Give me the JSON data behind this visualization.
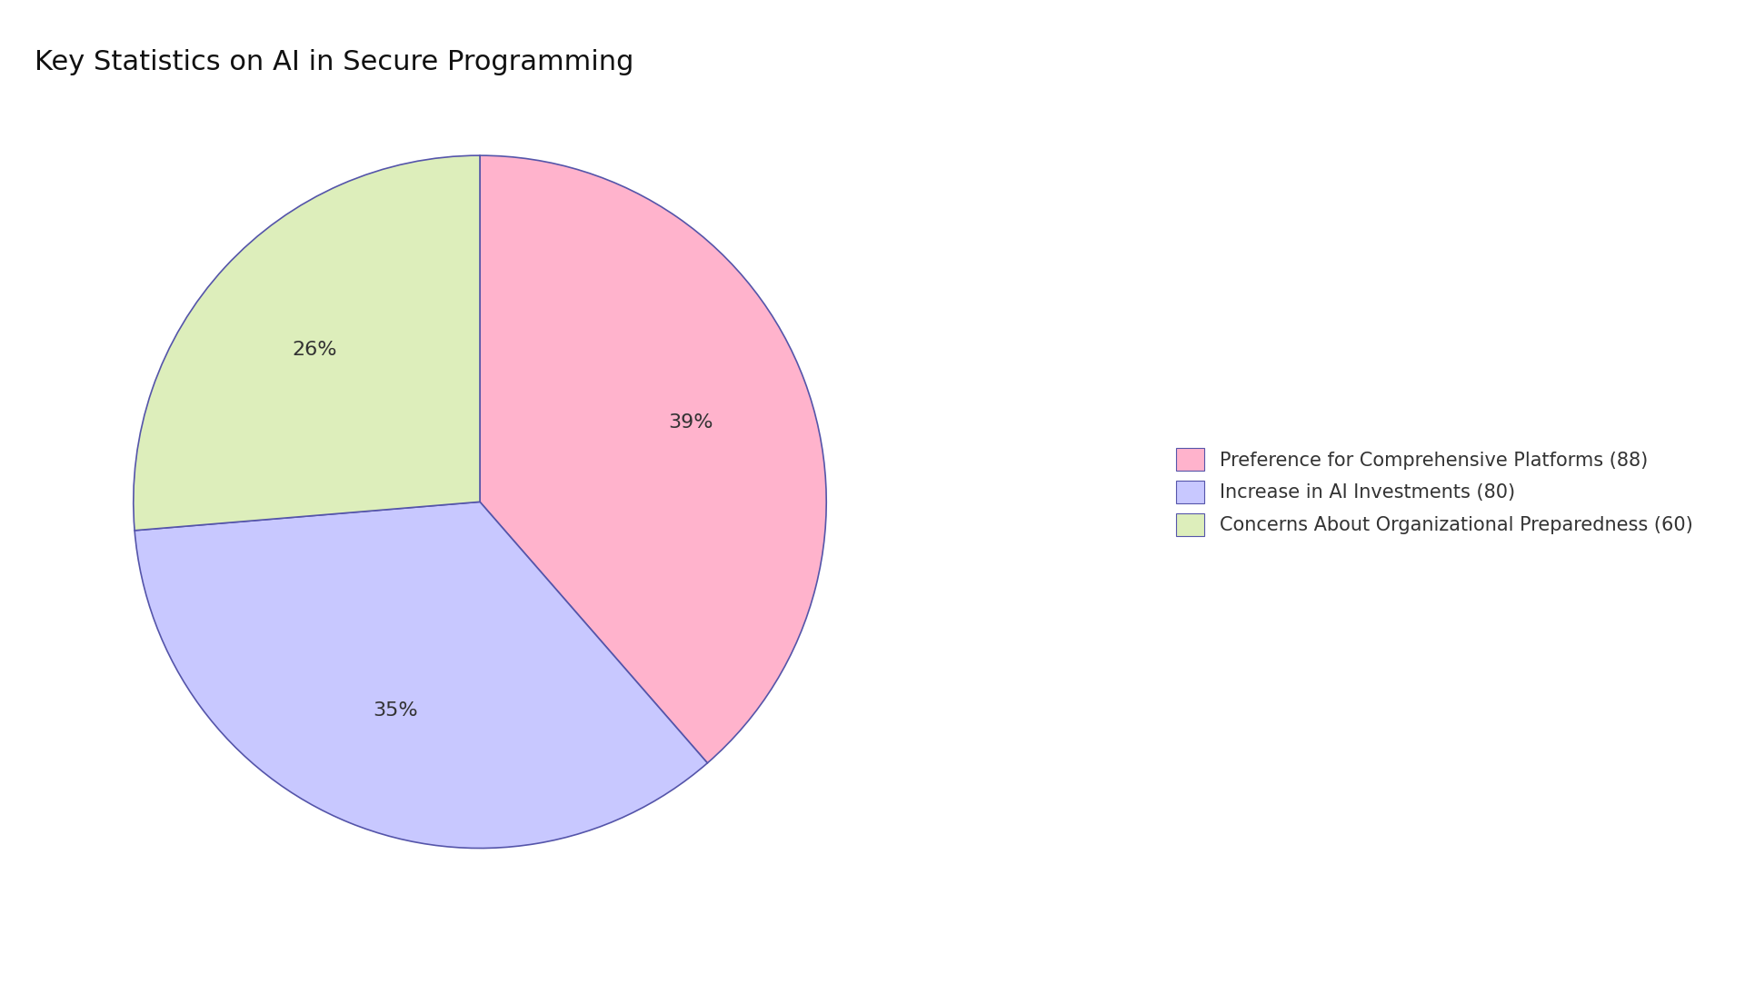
{
  "title": "Key Statistics on AI in Secure Programming",
  "title_fontsize": 22,
  "title_color": "#111111",
  "slices": [
    88,
    80,
    60
  ],
  "labels": [
    "Preference for Comprehensive Platforms (88)",
    "Increase in AI Investments (80)",
    "Concerns About Organizational Preparedness (60)"
  ],
  "colors": [
    "#FFB3CC",
    "#C8C8FF",
    "#DDEEBB"
  ],
  "edge_color": "#5555AA",
  "edge_width": 1.2,
  "autopct_fontsize": 16,
  "legend_fontsize": 15,
  "background_color": "#FFFFFF",
  "startangle": 90
}
